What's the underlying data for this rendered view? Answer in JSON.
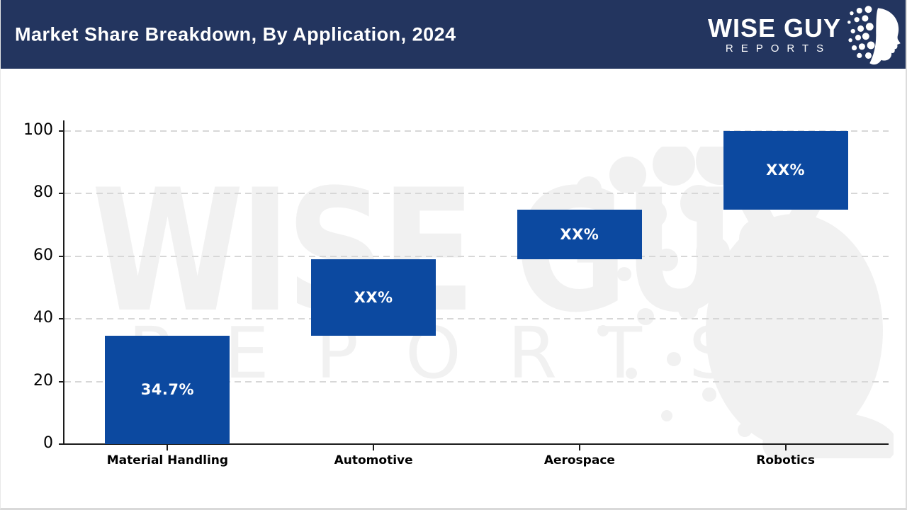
{
  "header": {
    "title": "Market Share Breakdown, By Application, 2024",
    "logo": {
      "line1": "WISE GUY",
      "line2": "REPORTS"
    }
  },
  "watermark": {
    "line1": "WISE GUY",
    "line2": "REPORTS"
  },
  "colors": {
    "header_bg": "#23355f",
    "bar": "#0c49a0",
    "grid": "#d7d7d7",
    "watermark": "#f1f1f1"
  },
  "chart_data": {
    "type": "bar",
    "subtype": "waterfall",
    "title": "Market Share Breakdown, By Application, 2024",
    "categories": [
      "Material Handling",
      "Automotive",
      "Aerospace",
      "Robotics"
    ],
    "segments": [
      {
        "category": "Material Handling",
        "start": 0,
        "end": 34.7,
        "label": "34.7%"
      },
      {
        "category": "Automotive",
        "start": 34.7,
        "end": 59,
        "label": "XX%"
      },
      {
        "category": "Aerospace",
        "start": 59,
        "end": 75,
        "label": "XX%"
      },
      {
        "category": "Robotics",
        "start": 75,
        "end": 100,
        "label": "XX%"
      }
    ],
    "ylabel": "",
    "xlabel": "",
    "yticks": [
      0,
      20,
      40,
      60,
      80,
      100
    ],
    "ylim": [
      0,
      103
    ],
    "grid": "horizontal-dashed",
    "legend": "none"
  }
}
